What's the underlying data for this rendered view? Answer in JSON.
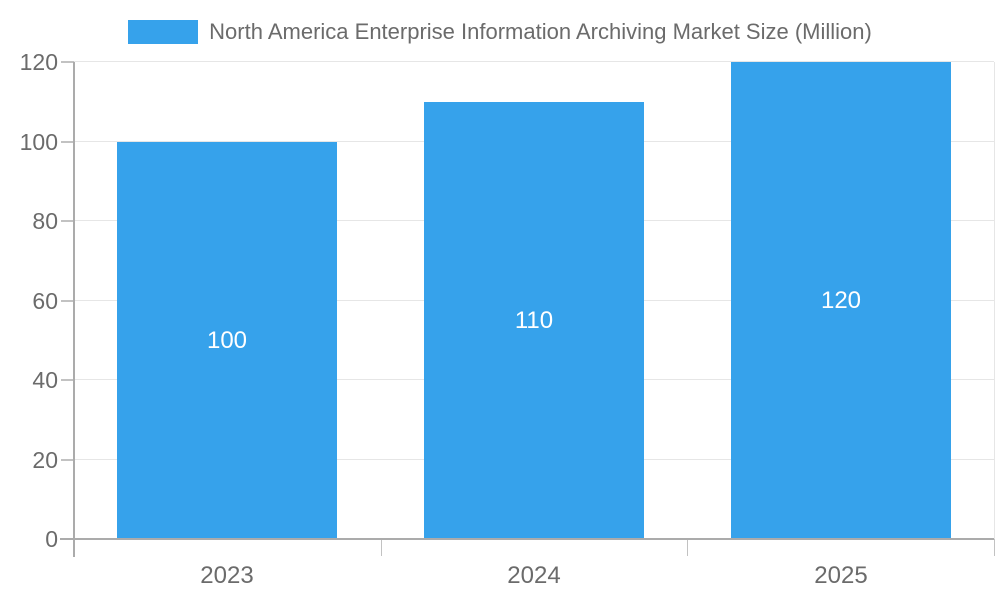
{
  "chart_data": {
    "type": "bar",
    "legend": "North America Enterprise Information Archiving Market Size (Million)",
    "legend_position": "top",
    "categories": [
      "2023",
      "2024",
      "2025"
    ],
    "values": [
      100,
      110,
      120
    ],
    "bar_value_labels": [
      "100",
      "110",
      "120"
    ],
    "yticks": [
      0,
      20,
      40,
      60,
      80,
      100,
      120
    ],
    "ylim": [
      0,
      120
    ],
    "ytick_step": 20,
    "grid": true,
    "xlabel": "",
    "ylabel": "",
    "colors": {
      "bar": "#36A2EB",
      "bar_label_text": "#FFFFFF",
      "axis_text": "#6B6B6B",
      "grid_line": "#E6E6E6",
      "axis_line": "#ABABAB",
      "tick_mark": "#C2C2C2"
    }
  }
}
